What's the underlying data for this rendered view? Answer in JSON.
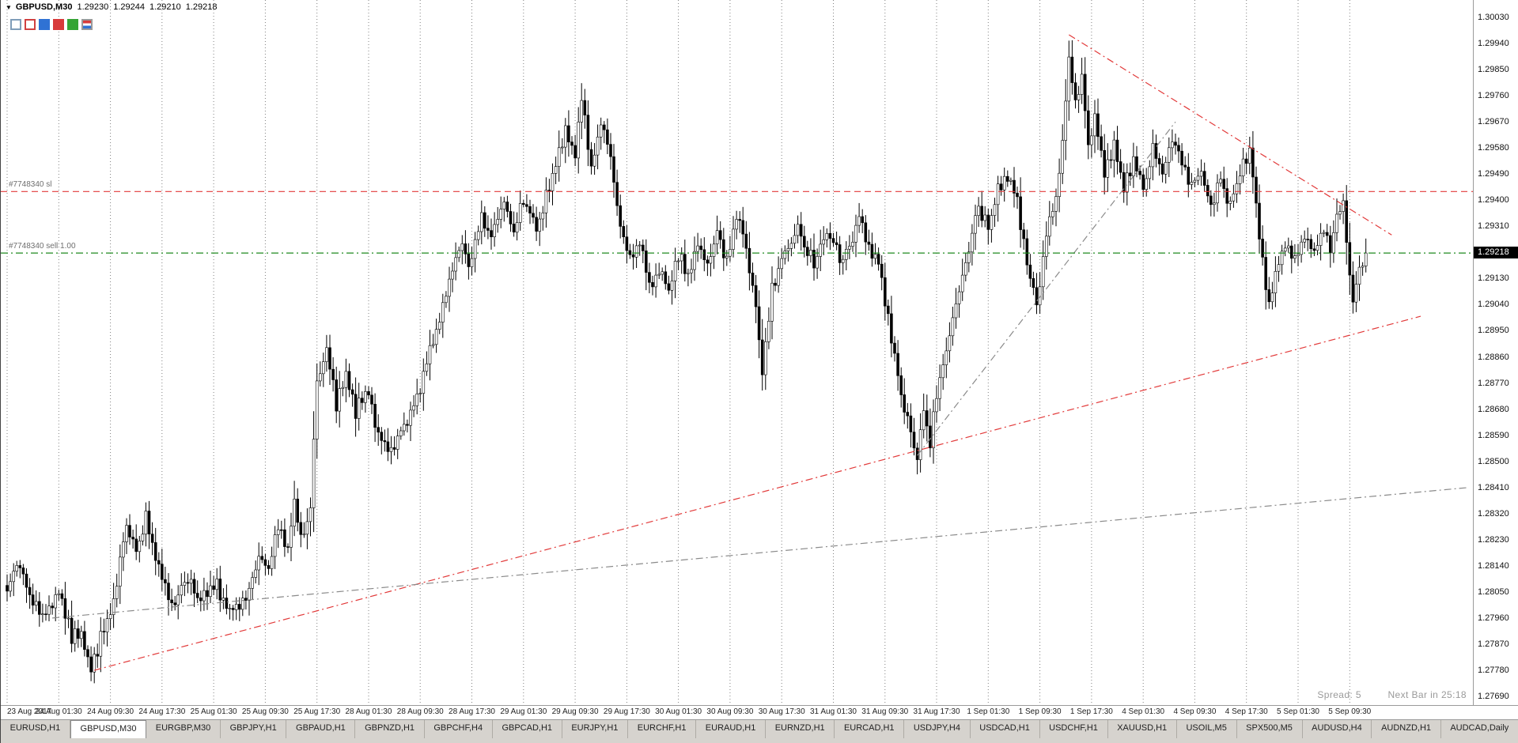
{
  "header": {
    "symbol": "GBPUSD,M30",
    "open": "1.29230",
    "high": "1.29244",
    "low": "1.29210",
    "close": "1.29218"
  },
  "toolbar": {
    "swatches": [
      {
        "name": "empty-box-button",
        "fill": "#ffffff",
        "border": "#7f9db9"
      },
      {
        "name": "red-box-button",
        "fill": "#ffffff",
        "border": "#d04040"
      },
      {
        "name": "blue-fill-button",
        "fill": "#2f72d4",
        "border": "#2f72d4"
      },
      {
        "name": "red-fill-button",
        "fill": "#d83a3a",
        "border": "#d83a3a"
      },
      {
        "name": "green-fill-button",
        "fill": "#35a435",
        "border": "#35a435"
      },
      {
        "name": "striped-button",
        "stripes": [
          "#d83a3a",
          "#ffffff",
          "#2f72d4"
        ],
        "border": "#9a9a9a"
      }
    ]
  },
  "status": {
    "spread": "Spread: 5",
    "next_bar": "Next Bar in 25:18"
  },
  "price_axis": {
    "labels": [
      "1.30030",
      "1.29940",
      "1.29850",
      "1.29760",
      "1.29670",
      "1.29580",
      "1.29490",
      "1.29400",
      "1.29310",
      "1.29130",
      "1.29040",
      "1.28950",
      "1.28860",
      "1.28770",
      "1.28680",
      "1.28590",
      "1.28500",
      "1.28410",
      "1.28320",
      "1.28230",
      "1.28140",
      "1.28050",
      "1.27960",
      "1.27870",
      "1.27780",
      "1.27690"
    ],
    "current": "1.29218"
  },
  "time_axis": {
    "labels": [
      "23 Aug 2017",
      "24 Aug 01:30",
      "24 Aug 09:30",
      "24 Aug 17:30",
      "25 Aug 01:30",
      "25 Aug 09:30",
      "25 Aug 17:30",
      "28 Aug 01:30",
      "28 Aug 09:30",
      "28 Aug 17:30",
      "29 Aug 01:30",
      "29 Aug 09:30",
      "29 Aug 17:30",
      "30 Aug 01:30",
      "30 Aug 09:30",
      "30 Aug 17:30",
      "31 Aug 01:30",
      "31 Aug 09:30",
      "31 Aug 17:30",
      "1 Sep 01:30",
      "1 Sep 09:30",
      "1 Sep 17:30",
      "4 Sep 01:30",
      "4 Sep 09:30",
      "4 Sep 17:30",
      "5 Sep 01:30",
      "5 Sep 09:30"
    ]
  },
  "tabs": {
    "items": [
      {
        "label": "EURUSD,H1",
        "active": false
      },
      {
        "label": "GBPUSD,M30",
        "active": true
      },
      {
        "label": "EURGBP,M30",
        "active": false
      },
      {
        "label": "GBPJPY,H1",
        "active": false
      },
      {
        "label": "GBPAUD,H1",
        "active": false
      },
      {
        "label": "GBPNZD,H1",
        "active": false
      },
      {
        "label": "GBPCHF,H4",
        "active": false
      },
      {
        "label": "GBPCAD,H1",
        "active": false
      },
      {
        "label": "EURJPY,H1",
        "active": false
      },
      {
        "label": "EURCHF,H1",
        "active": false
      },
      {
        "label": "EURAUD,H1",
        "active": false
      },
      {
        "label": "EURNZD,H1",
        "active": false
      },
      {
        "label": "EURCAD,H1",
        "active": false
      },
      {
        "label": "USDJPY,H4",
        "active": false
      },
      {
        "label": "USDCAD,H1",
        "active": false
      },
      {
        "label": "USDCHF,H1",
        "active": false
      },
      {
        "label": "XAUUSD,H1",
        "active": false
      },
      {
        "label": "USOIL,M5",
        "active": false
      },
      {
        "label": "SPX500,M5",
        "active": false
      },
      {
        "label": "AUDUSD,H4",
        "active": false
      },
      {
        "label": "AUDNZD,H1",
        "active": false
      },
      {
        "label": "AUDCAD,Daily",
        "active": false
      }
    ]
  },
  "chart_data": {
    "type": "candlestick",
    "title": "GBPUSD,M30",
    "timeframe": "M30",
    "bars_per_label": 16,
    "bars_total": 422,
    "price_range": [
      1.2766,
      1.3009
    ],
    "up_color": "#ffffff",
    "down_color": "#000000",
    "outline_color": "#000000",
    "grid_color": "#808080",
    "path_anchors": [
      [
        0,
        1.2808
      ],
      [
        4,
        1.2814
      ],
      [
        8,
        1.2801
      ],
      [
        12,
        1.2797
      ],
      [
        16,
        1.2806
      ],
      [
        20,
        1.2789
      ],
      [
        23,
        1.2792
      ],
      [
        26,
        1.2778
      ],
      [
        29,
        1.2789
      ],
      [
        33,
        1.28
      ],
      [
        37,
        1.2829
      ],
      [
        40,
        1.282
      ],
      [
        43,
        1.2831
      ],
      [
        47,
        1.2812
      ],
      [
        51,
        1.2801
      ],
      [
        56,
        1.281
      ],
      [
        60,
        1.2802
      ],
      [
        65,
        1.2807
      ],
      [
        69,
        1.2797
      ],
      [
        74,
        1.2801
      ],
      [
        78,
        1.2818
      ],
      [
        81,
        1.2812
      ],
      [
        84,
        1.2827
      ],
      [
        87,
        1.2819
      ],
      [
        89,
        1.2836
      ],
      [
        91,
        1.2825
      ],
      [
        94,
        1.2833
      ],
      [
        96,
        1.2878
      ],
      [
        99,
        1.2888
      ],
      [
        102,
        1.2869
      ],
      [
        105,
        1.2879
      ],
      [
        108,
        1.2867
      ],
      [
        112,
        1.2875
      ],
      [
        115,
        1.2858
      ],
      [
        119,
        1.2852
      ],
      [
        123,
        1.2862
      ],
      [
        127,
        1.2871
      ],
      [
        131,
        1.2889
      ],
      [
        134,
        1.2899
      ],
      [
        137,
        1.2914
      ],
      [
        140,
        1.2925
      ],
      [
        143,
        1.2918
      ],
      [
        147,
        1.2934
      ],
      [
        150,
        1.2927
      ],
      [
        154,
        1.2939
      ],
      [
        157,
        1.2929
      ],
      [
        160,
        1.2941
      ],
      [
        164,
        1.2929
      ],
      [
        169,
        1.2949
      ],
      [
        173,
        1.2963
      ],
      [
        176,
        1.2956
      ],
      [
        178,
        1.2976
      ],
      [
        181,
        1.2949
      ],
      [
        184,
        1.2967
      ],
      [
        187,
        1.2954
      ],
      [
        190,
        1.2931
      ],
      [
        193,
        1.2919
      ],
      [
        196,
        1.2927
      ],
      [
        199,
        1.2909
      ],
      [
        202,
        1.2917
      ],
      [
        205,
        1.2907
      ],
      [
        208,
        1.2921
      ],
      [
        211,
        1.2914
      ],
      [
        214,
        1.2924
      ],
      [
        217,
        1.2917
      ],
      [
        220,
        1.2929
      ],
      [
        223,
        1.2919
      ],
      [
        226,
        1.2934
      ],
      [
        229,
        1.2924
      ],
      [
        232,
        1.2904
      ],
      [
        234,
        1.2879
      ],
      [
        237,
        1.2909
      ],
      [
        240,
        1.2919
      ],
      [
        245,
        1.2929
      ],
      [
        250,
        1.2919
      ],
      [
        254,
        1.2929
      ],
      [
        259,
        1.2919
      ],
      [
        264,
        1.2934
      ],
      [
        267,
        1.2924
      ],
      [
        270,
        1.2919
      ],
      [
        273,
        1.2899
      ],
      [
        276,
        1.2879
      ],
      [
        279,
        1.2864
      ],
      [
        282,
        1.285
      ],
      [
        284,
        1.2869
      ],
      [
        286,
        1.2857
      ],
      [
        289,
        1.2879
      ],
      [
        292,
        1.2894
      ],
      [
        295,
        1.2909
      ],
      [
        298,
        1.2924
      ],
      [
        301,
        1.2939
      ],
      [
        304,
        1.2929
      ],
      [
        307,
        1.2944
      ],
      [
        310,
        1.2949
      ],
      [
        313,
        1.2939
      ],
      [
        316,
        1.2919
      ],
      [
        319,
        1.2904
      ],
      [
        322,
        1.2929
      ],
      [
        325,
        1.2939
      ],
      [
        327,
        1.2959
      ],
      [
        329,
        1.2988
      ],
      [
        331,
        1.2973
      ],
      [
        333,
        1.2983
      ],
      [
        335,
        1.2959
      ],
      [
        337,
        1.2969
      ],
      [
        340,
        1.2949
      ],
      [
        343,
        1.2959
      ],
      [
        346,
        1.2944
      ],
      [
        349,
        1.2954
      ],
      [
        352,
        1.2944
      ],
      [
        355,
        1.2957
      ],
      [
        358,
        1.2949
      ],
      [
        361,
        1.2961
      ],
      [
        364,
        1.2954
      ],
      [
        367,
        1.2944
      ],
      [
        370,
        1.2949
      ],
      [
        373,
        1.2939
      ],
      [
        376,
        1.2947
      ],
      [
        379,
        1.2939
      ],
      [
        382,
        1.2949
      ],
      [
        385,
        1.2957
      ],
      [
        387,
        1.2939
      ],
      [
        389,
        1.2919
      ],
      [
        391,
        1.2904
      ],
      [
        393,
        1.2914
      ],
      [
        396,
        1.2924
      ],
      [
        399,
        1.2919
      ],
      [
        402,
        1.2927
      ],
      [
        405,
        1.2921
      ],
      [
        408,
        1.2929
      ],
      [
        410,
        1.2924
      ],
      [
        412,
        1.2934
      ],
      [
        414,
        1.2939
      ],
      [
        416,
        1.2914
      ],
      [
        417,
        1.2904
      ],
      [
        419,
        1.2917
      ],
      [
        421,
        1.29218
      ]
    ],
    "trendlines": [
      {
        "from": [
          329,
          1.2997
        ],
        "to": [
          429,
          1.2928
        ],
        "color": "#e23a3a",
        "style": "dash-dot"
      },
      {
        "from": [
          27,
          1.2778
        ],
        "to": [
          438,
          1.29
        ],
        "color": "#e23a3a",
        "style": "dash-dot"
      },
      {
        "from": [
          14,
          1.2796
        ],
        "to": [
          453,
          1.2841
        ],
        "color": "#8a8a8a",
        "style": "dash-dot"
      },
      {
        "from": [
          282,
          1.2852
        ],
        "to": [
          362,
          1.2967
        ],
        "color": "#8a8a8a",
        "style": "dash-dot"
      }
    ],
    "horizontal_lines": [
      {
        "price": 1.2943,
        "color": "#e23a3a",
        "label": "#7748340 sl",
        "style": "dash"
      },
      {
        "price": 1.29218,
        "color": "#1f8a1f",
        "label": "#7748340 sell 1.00",
        "style": "dash-dot"
      }
    ]
  }
}
